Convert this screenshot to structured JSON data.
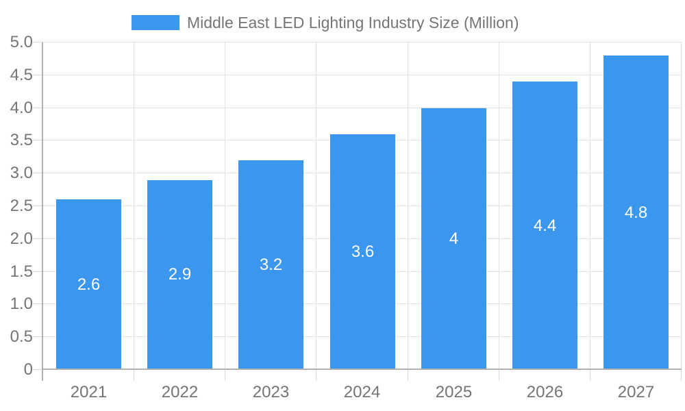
{
  "chart_data": {
    "type": "bar",
    "title": "Middle East LED Lighting Industry Size (Million)",
    "legend": {
      "position": "top",
      "label": "Middle East LED Lighting Industry Size (Million)"
    },
    "categories": [
      "2021",
      "2022",
      "2023",
      "2024",
      "2025",
      "2026",
      "2027"
    ],
    "series": [
      {
        "name": "Middle East LED Lighting Industry Size (Million)",
        "values": [
          2.6,
          2.9,
          3.2,
          3.6,
          4,
          4.4,
          4.8
        ]
      }
    ],
    "value_labels": [
      "2.6",
      "2.9",
      "3.2",
      "3.6",
      "4",
      "4.4",
      "4.8"
    ],
    "xlabel": "",
    "ylabel": "",
    "ylim": [
      0,
      5
    ],
    "ytick_step": 0.5,
    "ytick_labels": [
      "0",
      "0.5",
      "1.0",
      "1.5",
      "2.0",
      "2.5",
      "3.0",
      "3.5",
      "4.0",
      "4.5",
      "5.0"
    ],
    "grid": true,
    "colors": {
      "bar": "#3B97ED",
      "value_label": "#FFFFFF",
      "grid_line": "#E2E2E2",
      "tick": "#D9D9D9",
      "axis_line": "#B0B0B0",
      "axis_text": "#757575"
    }
  }
}
